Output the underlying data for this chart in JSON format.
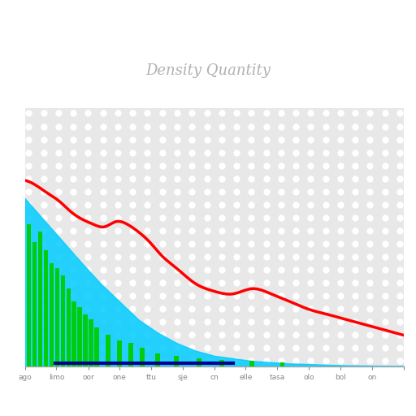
{
  "title": "Density Quantity",
  "title_color": "#b0b0b0",
  "title_fontsize": 13,
  "bg_color": "#ffffff",
  "plot_bg_color": "#e8e8e8",
  "dot_color": "#ffffff",
  "cyan_area_color": "#00ccff",
  "green_bar_color": "#00cc00",
  "red_line_color": "#ff0000",
  "blue_line_color": "#00008b",
  "xlim": [
    0,
    1.0
  ],
  "ylim": [
    0,
    1.0
  ],
  "red_line_x": [
    0.0,
    0.03,
    0.06,
    0.09,
    0.12,
    0.15,
    0.18,
    0.21,
    0.24,
    0.27,
    0.3,
    0.33,
    0.36,
    0.4,
    0.45,
    0.5,
    0.55,
    0.6,
    0.65,
    0.7,
    0.75,
    0.8,
    0.85,
    0.9,
    0.95,
    1.0
  ],
  "red_line_y": [
    0.72,
    0.7,
    0.67,
    0.64,
    0.6,
    0.57,
    0.55,
    0.54,
    0.56,
    0.55,
    0.52,
    0.48,
    0.43,
    0.38,
    0.32,
    0.29,
    0.28,
    0.3,
    0.28,
    0.25,
    0.22,
    0.2,
    0.18,
    0.16,
    0.14,
    0.12
  ],
  "cyan_x": [
    0.0,
    0.03,
    0.06,
    0.09,
    0.12,
    0.15,
    0.2,
    0.25,
    0.3,
    0.35,
    0.4,
    0.45,
    0.5,
    0.55,
    0.6,
    0.65,
    0.7,
    0.75,
    0.8,
    0.85,
    0.9,
    0.95,
    1.0
  ],
  "cyan_y": [
    0.65,
    0.6,
    0.55,
    0.5,
    0.45,
    0.4,
    0.32,
    0.25,
    0.18,
    0.13,
    0.09,
    0.06,
    0.04,
    0.03,
    0.02,
    0.015,
    0.01,
    0.008,
    0.005,
    0.003,
    0.002,
    0.001,
    0.0
  ],
  "green_bars_x": [
    0.01,
    0.025,
    0.04,
    0.055,
    0.07,
    0.085,
    0.1,
    0.115,
    0.13,
    0.145,
    0.16,
    0.175,
    0.19,
    0.22,
    0.25,
    0.28,
    0.31,
    0.35,
    0.4,
    0.46,
    0.52,
    0.6,
    0.68
  ],
  "green_bars_h": [
    0.55,
    0.48,
    0.52,
    0.45,
    0.4,
    0.38,
    0.35,
    0.3,
    0.25,
    0.23,
    0.2,
    0.18,
    0.15,
    0.12,
    0.1,
    0.09,
    0.07,
    0.05,
    0.04,
    0.03,
    0.025,
    0.02,
    0.015
  ],
  "blue_line_x": [
    0.08,
    0.55
  ],
  "blue_line_y": [
    0.01,
    0.01
  ],
  "x_tick_positions": [
    0.0,
    0.083,
    0.167,
    0.25,
    0.333,
    0.417,
    0.5,
    0.583,
    0.667,
    0.75,
    0.833,
    0.917,
    1.0
  ],
  "x_tick_labels": [
    "ago",
    "limo",
    "oor",
    "one",
    "ttu",
    "sje",
    "cn",
    "elle",
    "tasa",
    "olo",
    "bol",
    "on",
    ""
  ],
  "dot_nx": 26,
  "dot_ny": 20,
  "dot_size": 6
}
